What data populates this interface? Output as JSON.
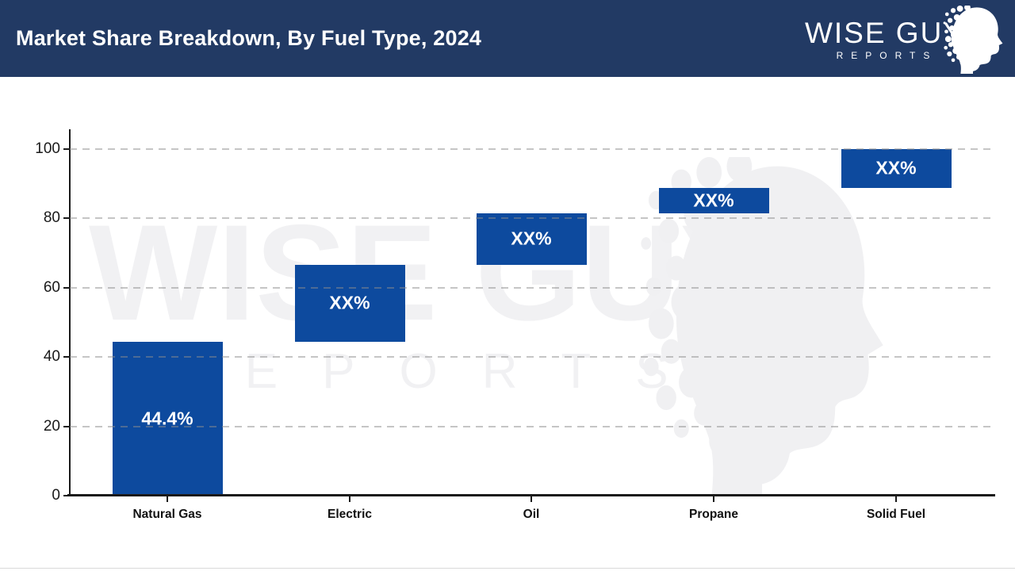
{
  "header": {
    "title": "Market Share Breakdown, By Fuel Type, 2024",
    "logo": {
      "line1": "WISE GUY",
      "line2": "REPORTS"
    }
  },
  "watermark": {
    "line1": "WISE GUY",
    "line2": "REPORTS"
  },
  "colors": {
    "header_bg": "#223A64",
    "bar": "#0D4A9E",
    "bar_label": "#ffffff",
    "watermark": "#F1F1F3",
    "axis": "#1a1a1a",
    "grid": "#c8c8c8"
  },
  "icons": {
    "logo_head": "dotted-head-profile"
  },
  "chart_data": {
    "type": "bar",
    "subtype": "waterfall",
    "title": "Market Share Breakdown, By Fuel Type, 2024",
    "categories": [
      "Natural Gas",
      "Electric",
      "Oil",
      "Propane",
      "Solid Fuel"
    ],
    "segments": [
      {
        "category": "Natural Gas",
        "start": 0,
        "end": 44.4,
        "value": 44.4,
        "label": "44.4%"
      },
      {
        "category": "Electric",
        "start": 44.4,
        "end": 66.7,
        "value": 22.3,
        "label": "XX%"
      },
      {
        "category": "Oil",
        "start": 66.7,
        "end": 81.5,
        "value": 14.8,
        "label": "XX%"
      },
      {
        "category": "Propane",
        "start": 81.5,
        "end": 88.9,
        "value": 7.4,
        "label": "XX%"
      },
      {
        "category": "Solid Fuel",
        "start": 88.9,
        "end": 100,
        "value": 11.1,
        "label": "XX%"
      }
    ],
    "xlabel": "",
    "ylabel": "",
    "ylim": [
      0,
      100
    ],
    "yticks": [
      0,
      20,
      40,
      60,
      80,
      100
    ],
    "grid": "horizontal-dashed",
    "legend": "none"
  }
}
